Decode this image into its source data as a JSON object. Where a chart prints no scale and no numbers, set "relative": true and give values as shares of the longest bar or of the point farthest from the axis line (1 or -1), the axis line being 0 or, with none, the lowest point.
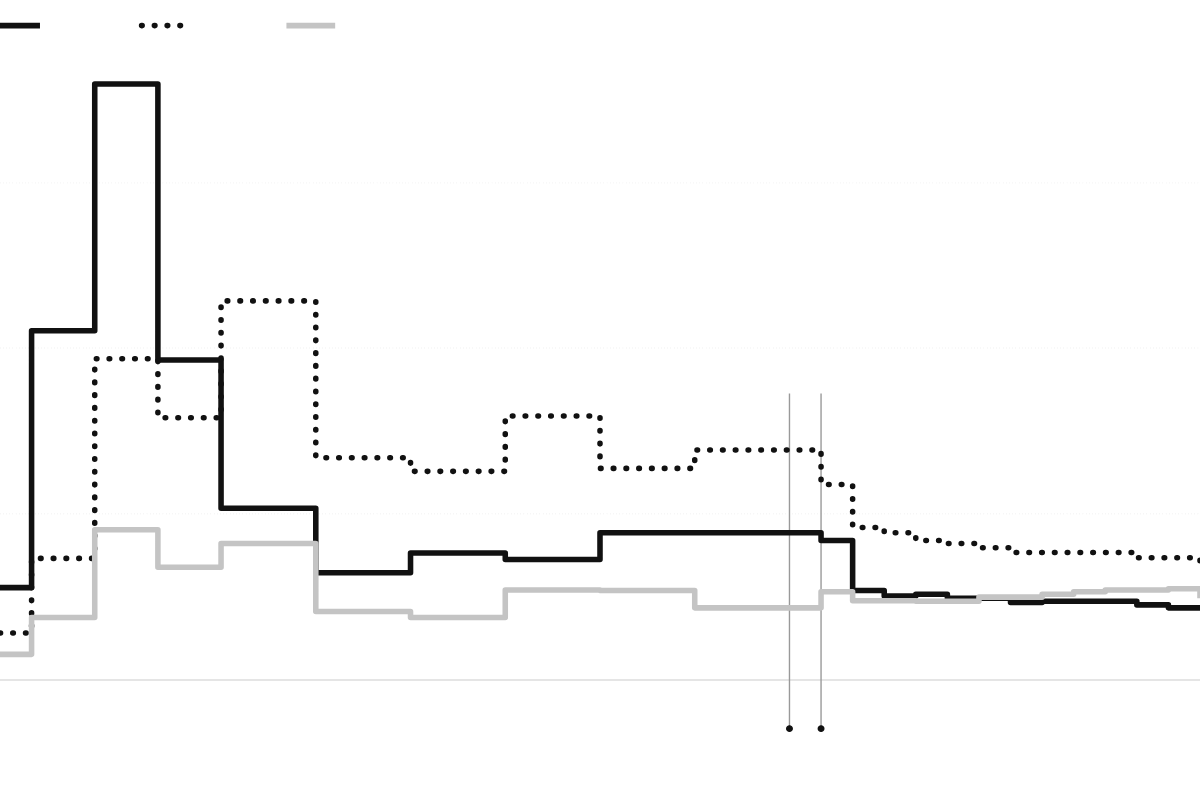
{
  "chart_data": {
    "type": "step",
    "relative": true,
    "categories": [
      null,
      null,
      null,
      null,
      null,
      null,
      null,
      null,
      null,
      null,
      null,
      null,
      null,
      null,
      null,
      null,
      null,
      null,
      null,
      null,
      null,
      null,
      null,
      null,
      null,
      null,
      null,
      null,
      null,
      null,
      null,
      null,
      null,
      null,
      null,
      null,
      null,
      null,
      null
    ],
    "series": [
      {
        "color": "#111111",
        "line_style": "solid",
        "values": [
          0.155,
          0.586,
          0.586,
          1,
          1,
          0.537,
          0.537,
          0.288,
          0.288,
          0.288,
          0.18,
          0.18,
          0.18,
          0.213,
          0.213,
          0.213,
          0.202,
          0.202,
          0.202,
          0.247,
          0.247,
          0.247,
          0.247,
          0.247,
          0.247,
          0.247,
          0.234,
          0.15,
          0.141,
          0.144,
          0.137,
          0.137,
          0.13,
          0.132,
          0.132,
          0.132,
          0.126,
          0.121,
          0.121
        ]
      },
      {
        "color": "#111111",
        "line_style": "dotted",
        "values": [
          0.079,
          0.204,
          0.204,
          0.539,
          0.539,
          0.44,
          0.44,
          0.636,
          0.636,
          0.636,
          0.373,
          0.373,
          0.373,
          0.35,
          0.35,
          0.35,
          0.443,
          0.443,
          0.443,
          0.355,
          0.355,
          0.355,
          0.386,
          0.386,
          0.386,
          0.386,
          0.328,
          0.256,
          0.247,
          0.234,
          0.229,
          0.222,
          0.214,
          0.214,
          0.214,
          0.214,
          0.205,
          0.205,
          0.198
        ]
      },
      {
        "color": "#c4c4c4",
        "line_style": "solid",
        "values": [
          0.043,
          0.105,
          0.105,
          0.252,
          0.252,
          0.189,
          0.189,
          0.229,
          0.229,
          0.229,
          0.115,
          0.115,
          0.115,
          0.105,
          0.105,
          0.105,
          0.151,
          0.151,
          0.151,
          0.15,
          0.15,
          0.15,
          0.121,
          0.121,
          0.121,
          0.121,
          0.148,
          0.133,
          0.133,
          0.132,
          0.132,
          0.139,
          0.139,
          0.144,
          0.148,
          0.151,
          0.151,
          0.153,
          0.142
        ]
      }
    ],
    "ref_lines": [
      {
        "axis": "y",
        "value": 0.279,
        "color": "#bbbbbb",
        "line_style": "dotted"
      },
      {
        "axis": "y",
        "value": 0.557,
        "color": "#bbbbbb",
        "line_style": "dotted"
      },
      {
        "axis": "y",
        "value": 0.834,
        "color": "#bbbbbb",
        "line_style": "dotted"
      }
    ]
  }
}
